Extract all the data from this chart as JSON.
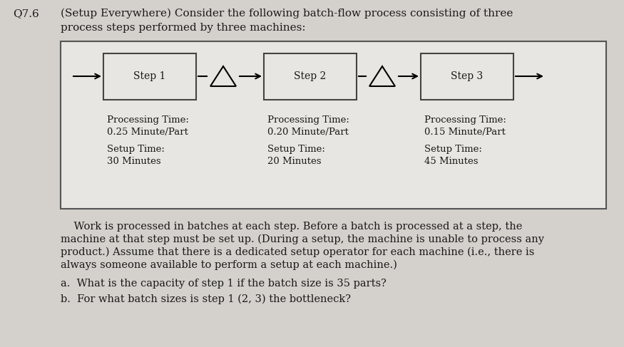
{
  "title_label": "Q7.6",
  "title_text": "(Setup Everywhere) Consider the following batch-flow process consisting of three\nprocess steps performed by three machines:",
  "steps": [
    "Step 1",
    "Step 2",
    "Step 3"
  ],
  "processing_time_label": "Processing Time:",
  "setup_time_label": "Setup Time:",
  "processing_times": [
    "0.25 Minute/Part",
    "0.20 Minute/Part",
    "0.15 Minute/Part"
  ],
  "setup_times": [
    "30 Minutes",
    "20 Minutes",
    "45 Minutes"
  ],
  "body_line1": "    Work is processed in batches at each step. Before a batch is processed at a step, the",
  "body_line2": "machine at that step must be set up. (During a setup, the machine is unable to process any",
  "body_line3": "product.) Assume that there is a dedicated setup operator for each machine (i.e., there is",
  "body_line4": "always someone available to perform a setup at each machine.)",
  "question_a": "a.  What is the capacity of step 1 if the batch size is 35 parts?",
  "question_b": "b.  For what batch sizes is step 1 (2, 3) the bottleneck?",
  "bg_color": "#d4d0cb",
  "box_bg": "#e8e6e2",
  "box_border": "#444444",
  "outer_box_bg": "#e8e6e2",
  "outer_box_border": "#555555",
  "text_color": "#1a1a1a",
  "font_size_header": 11.0,
  "font_size_step": 10.0,
  "font_size_info": 9.5,
  "font_size_body": 10.5,
  "font_size_qa": 10.5
}
